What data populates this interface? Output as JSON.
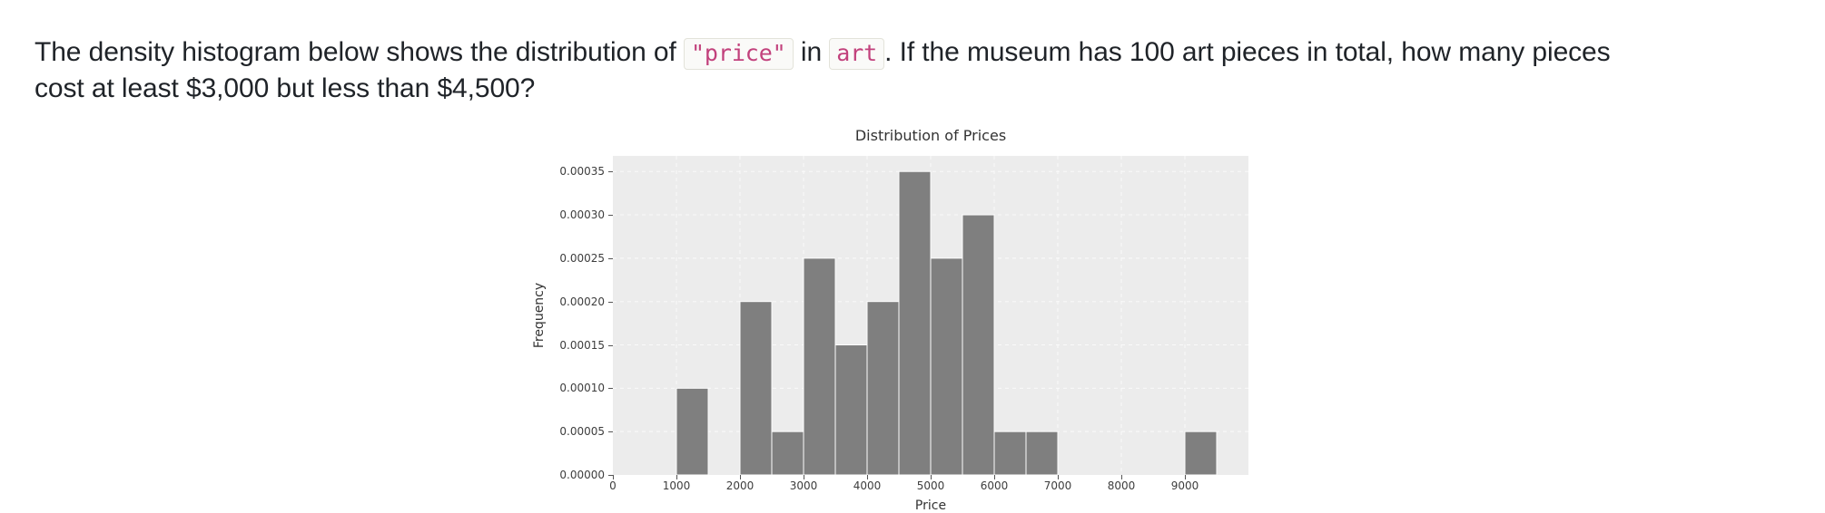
{
  "question": {
    "part1": "The density histogram below shows the distribution of ",
    "code1": "\"price\"",
    "part2": " in ",
    "code2": "art",
    "part3": ". If the museum has 100 art pieces in total, how many pieces",
    "part4": "cost at least $3,000 but less than $4,500?"
  },
  "colors": {
    "page_bg": "#ffffff",
    "question_text": "#1f2328",
    "code_text": "#c2417c",
    "code_bg": "#fafaf8",
    "code_border": "#e3e3da",
    "plot_bg": "#ececec",
    "grid_line": "#fafafa",
    "bar_fill": "#7f7f7f",
    "bar_edge": "#fcfcfc",
    "tick_text": "#3d3d3d",
    "title_text": "#333333",
    "tick_mark": "#555555"
  },
  "chart_data": {
    "type": "bar",
    "subtype": "density-histogram",
    "title": "Distribution of Prices",
    "xlabel": "Price",
    "ylabel": "Frequency",
    "bin_width": 500,
    "bins": [
      {
        "start": 1000,
        "end": 1500,
        "density": 0.0001
      },
      {
        "start": 2000,
        "end": 2500,
        "density": 0.0002
      },
      {
        "start": 2500,
        "end": 3000,
        "density": 5e-05
      },
      {
        "start": 3000,
        "end": 3500,
        "density": 0.00025
      },
      {
        "start": 3500,
        "end": 4000,
        "density": 0.00015
      },
      {
        "start": 4000,
        "end": 4500,
        "density": 0.0002
      },
      {
        "start": 4500,
        "end": 5000,
        "density": 0.00035
      },
      {
        "start": 5000,
        "end": 5500,
        "density": 0.00025
      },
      {
        "start": 5500,
        "end": 6000,
        "density": 0.0003
      },
      {
        "start": 6000,
        "end": 6500,
        "density": 5e-05
      },
      {
        "start": 6500,
        "end": 7000,
        "density": 5e-05
      },
      {
        "start": 9000,
        "end": 9500,
        "density": 5e-05
      }
    ],
    "x_ticks": [
      {
        "value": 0,
        "label": "0"
      },
      {
        "value": 1000,
        "label": "1000"
      },
      {
        "value": 2000,
        "label": "2000"
      },
      {
        "value": 3000,
        "label": "3000"
      },
      {
        "value": 4000,
        "label": "4000"
      },
      {
        "value": 5000,
        "label": "5000"
      },
      {
        "value": 6000,
        "label": "6000"
      },
      {
        "value": 7000,
        "label": "7000"
      },
      {
        "value": 8000,
        "label": "8000"
      },
      {
        "value": 9000,
        "label": "9000"
      }
    ],
    "y_ticks": [
      {
        "value": 0.0,
        "label": "0.00000"
      },
      {
        "value": 5e-05,
        "label": "0.00005"
      },
      {
        "value": 0.0001,
        "label": "0.00010"
      },
      {
        "value": 0.00015,
        "label": "0.00015"
      },
      {
        "value": 0.0002,
        "label": "0.00020"
      },
      {
        "value": 0.00025,
        "label": "0.00025"
      },
      {
        "value": 0.0003,
        "label": "0.00030"
      },
      {
        "value": 0.00035,
        "label": "0.00035"
      }
    ],
    "xlim": [
      0,
      10000
    ],
    "ylim": [
      0,
      0.000368
    ],
    "grid": "dashed-white",
    "legend": null
  }
}
